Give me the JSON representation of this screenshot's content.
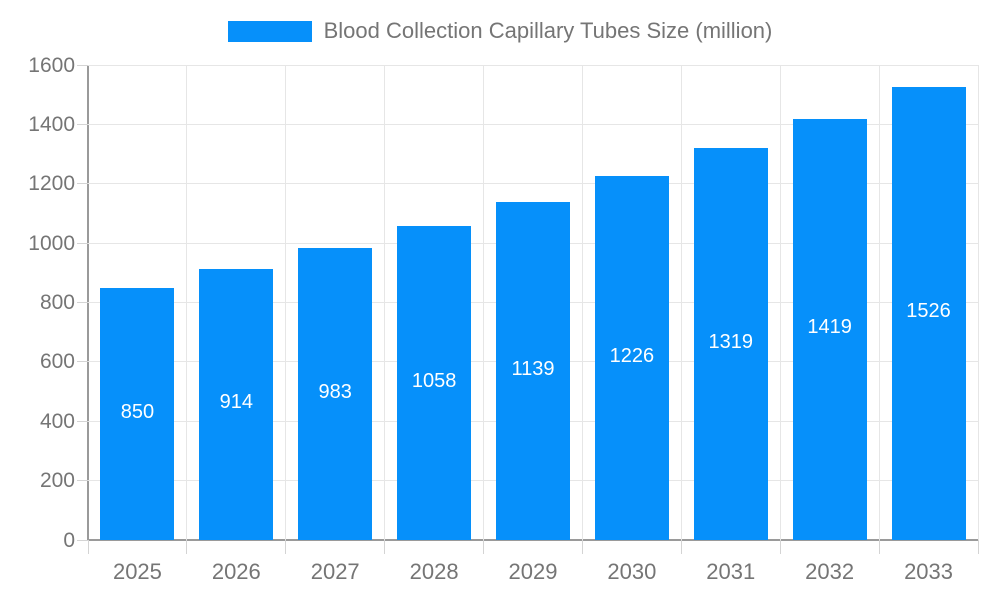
{
  "legend": {
    "label": "Blood Collection Capillary Tubes Size (million)"
  },
  "chart_data": {
    "type": "bar",
    "title": "Blood Collection Capillary Tubes Size (million)",
    "categories": [
      "2025",
      "2026",
      "2027",
      "2028",
      "2029",
      "2030",
      "2031",
      "2032",
      "2033"
    ],
    "values": [
      850,
      914,
      983,
      1058,
      1139,
      1226,
      1319,
      1419,
      1526
    ],
    "series_name": "Blood Collection Capillary Tubes Size (million)",
    "xlabel": "",
    "ylabel": "",
    "ylim": [
      0,
      1600
    ],
    "yticks": [
      0,
      200,
      400,
      600,
      800,
      1000,
      1200,
      1400,
      1600
    ],
    "grid": true,
    "legend_position": "top-center",
    "bar_labels_inside": true,
    "colors": {
      "bar": "#0690FA",
      "bar_label_text": "#ffffff",
      "axis_text": "#757575",
      "gridline": "#e6e6e6",
      "axis_line": "#9a9a9a",
      "tick": "#d4d4d4",
      "background": "#ffffff"
    }
  }
}
